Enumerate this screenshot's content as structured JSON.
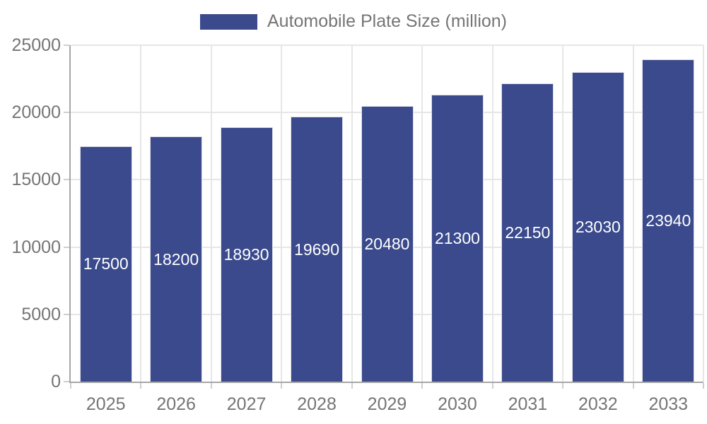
{
  "chart_data": {
    "type": "bar",
    "title": "Automobile Plate Size (million)",
    "legend_position": "top",
    "categories": [
      "2025",
      "2026",
      "2027",
      "2028",
      "2029",
      "2030",
      "2031",
      "2032",
      "2033"
    ],
    "series": [
      {
        "name": "Automobile Plate Size (million)",
        "values": [
          17500,
          18200,
          18930,
          19690,
          20480,
          21300,
          22150,
          23030,
          23940
        ]
      }
    ],
    "bar_value_labels": [
      "17500",
      "18200",
      "18930",
      "19690",
      "20480",
      "21300",
      "22150",
      "23030",
      "23940"
    ],
    "xlabel": "",
    "ylabel": "",
    "ylim": [
      0,
      25000
    ],
    "yticks": [
      0,
      5000,
      10000,
      15000,
      20000,
      25000
    ],
    "grid": true,
    "bar_label_position": "inside-center",
    "colors": {
      "bar": "#3A4A8C",
      "bar_edge": "#DEDEEA",
      "bar_label": "#FFFFFF",
      "grid_line": "#E6E6E6",
      "axis_line": "#A6A6A6",
      "tick_mark": "#CFCFCF",
      "tick_label": "#757575",
      "legend_text": "#757575",
      "background": "#FFFFFF"
    }
  }
}
